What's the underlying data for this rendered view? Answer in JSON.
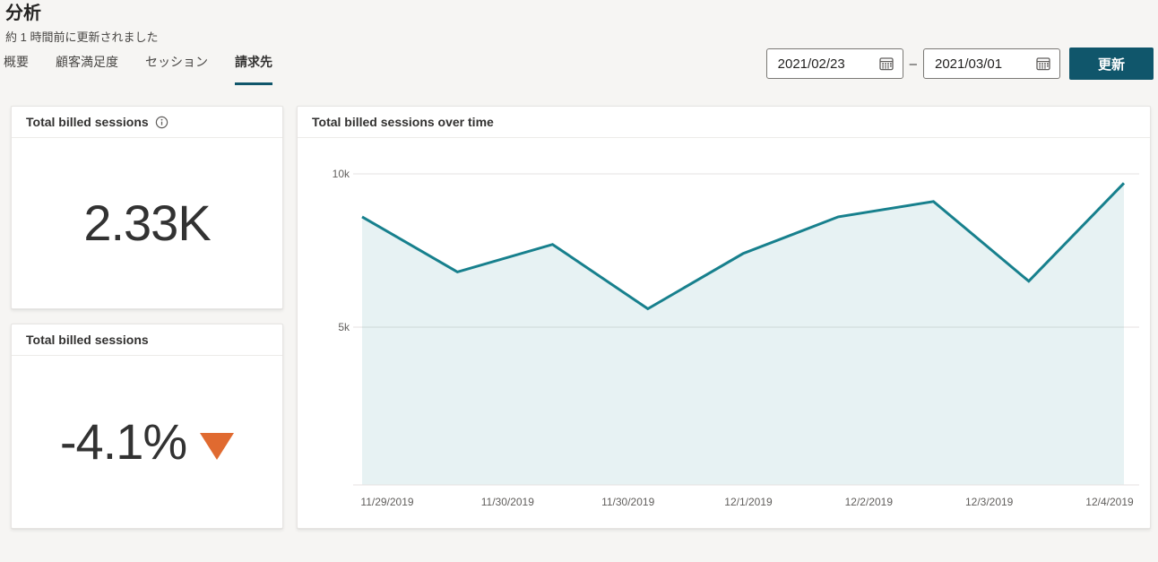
{
  "page": {
    "title": "分析",
    "updated": "約 1 時間前に更新されました"
  },
  "tabs": [
    {
      "label": "概要",
      "active": false
    },
    {
      "label": "顧客満足度",
      "active": false
    },
    {
      "label": "セッション",
      "active": false
    },
    {
      "label": "請求先",
      "active": true
    }
  ],
  "date_filter": {
    "start_value": "2021/02/23",
    "separator": "–",
    "end_value": "2021/03/01",
    "apply_label": "更新"
  },
  "kpi_cards": [
    {
      "title": "Total billed sessions",
      "value": "2.33K",
      "has_info_icon": true
    },
    {
      "title": "Total billed sessions",
      "value": "-4.1%",
      "trend": "down"
    }
  ],
  "chart_card": {
    "title": "Total billed sessions over time"
  },
  "chart_data": {
    "type": "area",
    "title": "Total billed sessions over time",
    "x_labels": [
      "11/29/2019",
      "11/30/2019",
      "11/30/2019",
      "12/1/2019",
      "12/2/2019",
      "12/3/2019",
      "12/4/2019"
    ],
    "values": [
      8600,
      6800,
      7700,
      5600,
      7400,
      8600,
      9100,
      6500,
      9700
    ],
    "ylim": [
      0,
      10000
    ],
    "y_ticks": [
      {
        "label": "5k",
        "value": 5000
      },
      {
        "label": "10k",
        "value": 10000
      }
    ],
    "grid": "horizontal-only",
    "legend": "none"
  },
  "icons": {
    "info": "info-icon",
    "calendar": "calendar-icon",
    "trend_down": "triangle-down-icon"
  },
  "colors": {
    "accent": "#10566b",
    "line": "#17808d",
    "area_fill": "rgba(23,128,141,0.10)",
    "trend_down": "#e06a30",
    "grid": "#e4e2e0",
    "axis_text": "#605e5c",
    "page_bg": "#f6f5f3"
  }
}
